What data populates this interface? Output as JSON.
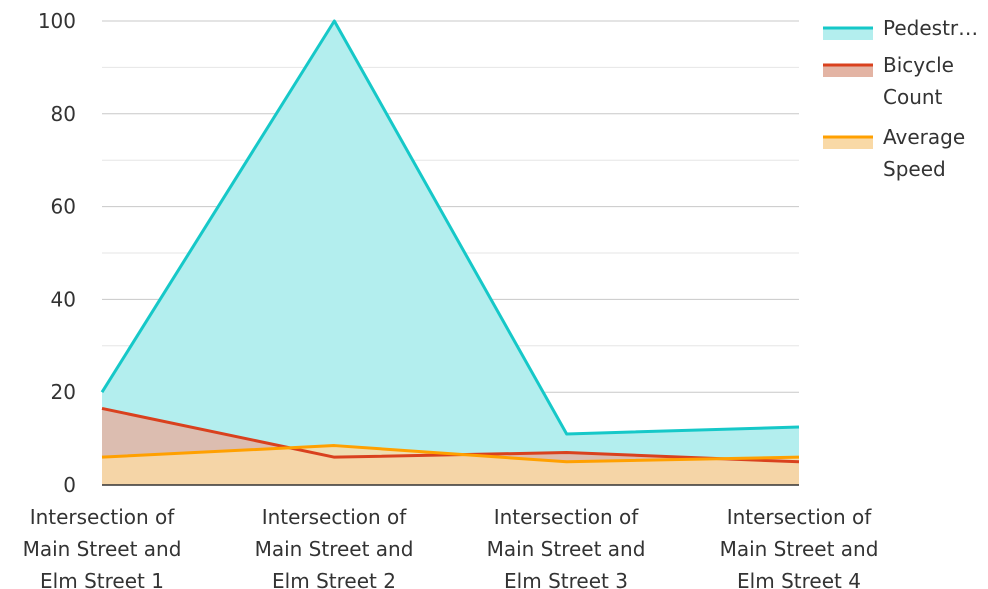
{
  "chart_data": {
    "type": "area",
    "categories": [
      [
        "Intersection of",
        "Main Street and",
        "Elm Street 1"
      ],
      [
        "Intersection of",
        "Main Street and",
        "Elm Street 2"
      ],
      [
        "Intersection of",
        "Main Street and",
        "Elm Street 3"
      ],
      [
        "Intersection of",
        "Main Street and",
        "Elm Street 4"
      ]
    ],
    "series": [
      {
        "name": "Pedestr…",
        "legend_lines": [
          "Pedestr…"
        ],
        "color": "#16c8c8",
        "fill": "#b3eeee",
        "values": [
          20,
          100,
          11,
          12.5
        ]
      },
      {
        "name": "Bicycle Count",
        "legend_lines": [
          "Bicycle",
          "Count"
        ],
        "color": "#d9411e",
        "fill": "#e3b4a4",
        "values": [
          16.5,
          6,
          7,
          5
        ]
      },
      {
        "name": "Average Speed",
        "legend_lines": [
          "Average",
          "Speed"
        ],
        "color": "#ffa000",
        "fill": "#f9d9a6",
        "values": [
          6,
          8.5,
          5,
          6
        ]
      }
    ],
    "yticks": [
      0,
      20,
      40,
      60,
      80,
      100
    ],
    "ylim": [
      0,
      100
    ],
    "grid": true,
    "legend_position": "right"
  }
}
